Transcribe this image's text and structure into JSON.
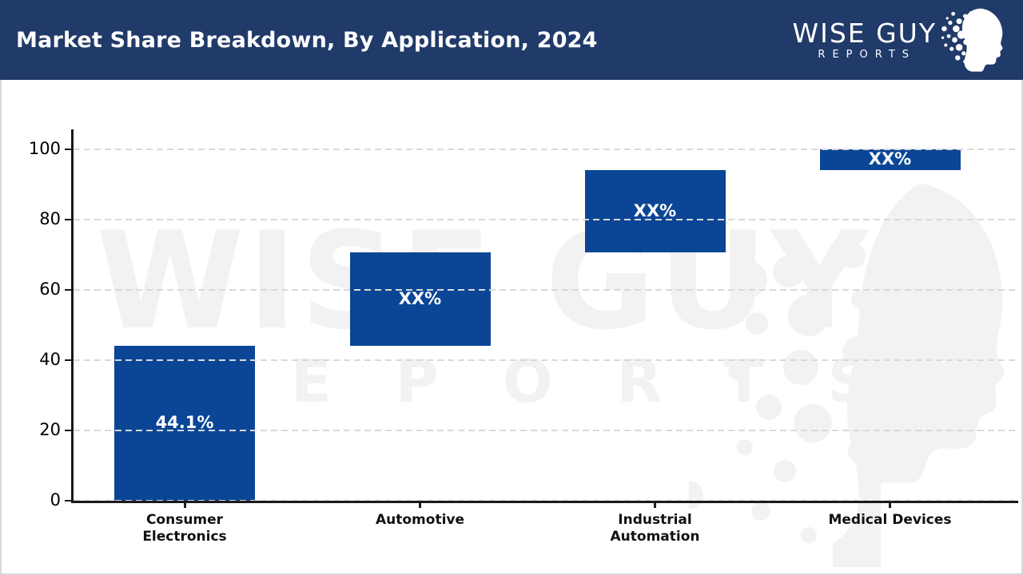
{
  "header": {
    "title": "Market Share Breakdown, By Application, 2024",
    "logo": {
      "name": "WISE GUY",
      "subtitle": "REPORTS"
    }
  },
  "watermark": {
    "line1": "WISE GUY",
    "line2": "REPORTS"
  },
  "colors": {
    "header_bg": "#203a69",
    "bar": "#0b4696",
    "grid": "#d9d9d9",
    "axis": "#1a1a1a",
    "watermark": "#f2f2f2",
    "bar_label": "#ffffff",
    "title_text": "#ffffff"
  },
  "chart_data": {
    "type": "bar",
    "subtype": "stacked-waterfall",
    "title": "Market Share Breakdown, By Application, 2024",
    "xlabel": "",
    "ylabel": "",
    "ylim": [
      0,
      100
    ],
    "yticks": [
      0,
      20,
      40,
      60,
      80,
      100
    ],
    "grid": "horizontal-dashed",
    "legend": "none",
    "categories": [
      {
        "label": "Consumer Electronics",
        "lines": [
          "Consumer",
          "Electronics"
        ],
        "start": 0,
        "end": 44.1,
        "value": 44.1,
        "bar_label": "44.1%"
      },
      {
        "label": "Automotive",
        "lines": [
          "Automotive"
        ],
        "start": 44.1,
        "end": 70.6,
        "value": 26.5,
        "bar_label": "XX%"
      },
      {
        "label": "Industrial Automation",
        "lines": [
          "Industrial",
          "Automation"
        ],
        "start": 70.6,
        "end": 94.1,
        "value": 23.5,
        "bar_label": "XX%"
      },
      {
        "label": "Medical Devices",
        "lines": [
          "Medical Devices"
        ],
        "start": 94.1,
        "end": 100,
        "value": 5.9,
        "bar_label": "XX%"
      }
    ]
  }
}
